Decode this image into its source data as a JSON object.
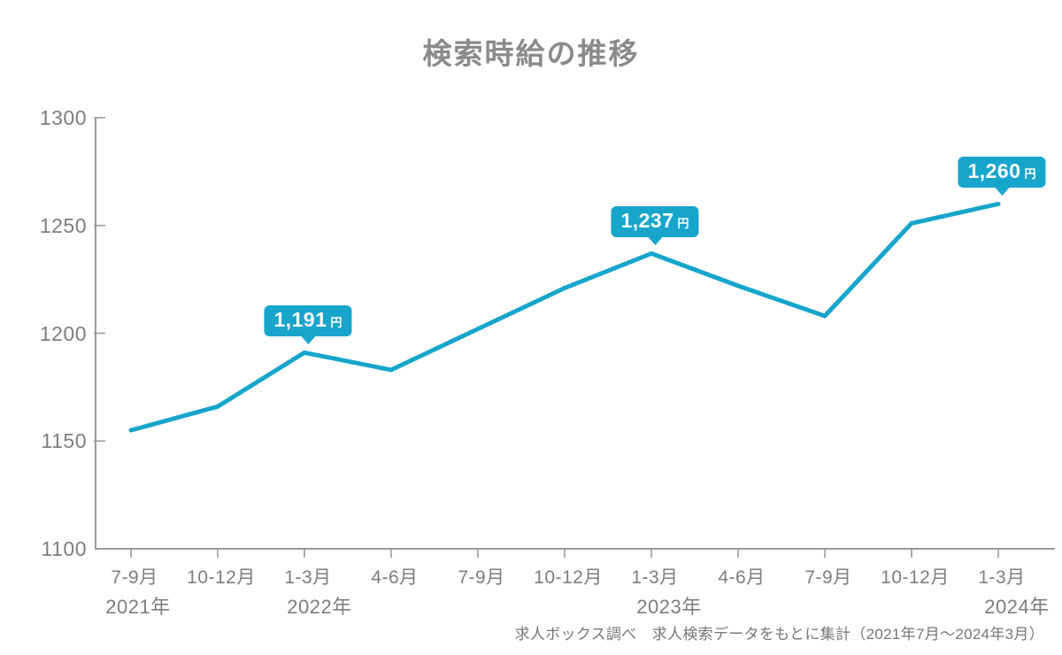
{
  "chart_data": {
    "type": "line",
    "title": "検索時給の推移",
    "unit": "円",
    "x": [
      "7-9月",
      "10-12月",
      "1-3月",
      "4-6月",
      "7-9月",
      "10-12月",
      "1-3月",
      "4-6月",
      "7-9月",
      "10-12月",
      "1-3月"
    ],
    "year_labels": [
      {
        "index": 0,
        "label": "2021年"
      },
      {
        "index": 2,
        "label": "2022年"
      },
      {
        "index": 6,
        "label": "2023年"
      },
      {
        "index": 10,
        "label": "2024年"
      }
    ],
    "series": [
      {
        "name": "検索時給",
        "values": [
          1155,
          1166,
          1191,
          1183,
          1202,
          1221,
          1237,
          1222,
          1208,
          1251,
          1260
        ]
      }
    ],
    "point_labels": [
      {
        "index": 2,
        "label": "1,191"
      },
      {
        "index": 6,
        "label": "1,237"
      },
      {
        "index": 10,
        "label": "1,260"
      }
    ],
    "ylim": [
      1100,
      1300
    ],
    "yticks": [
      1100,
      1150,
      1200,
      1250,
      1300
    ],
    "grid": false,
    "legend": false,
    "colors": {
      "line": "#17a5cc",
      "badge_bg": "#17a5cc",
      "badge_text": "#ffffff",
      "axis": "#9b9b9b",
      "tick_label": "#7e7e7e",
      "title": "#8a8a8a",
      "footer": "#777777"
    }
  },
  "footer": {
    "source_note": "求人ボックス調べ　求人検索データをもとに集計（2021年7月～2024年3月）"
  }
}
